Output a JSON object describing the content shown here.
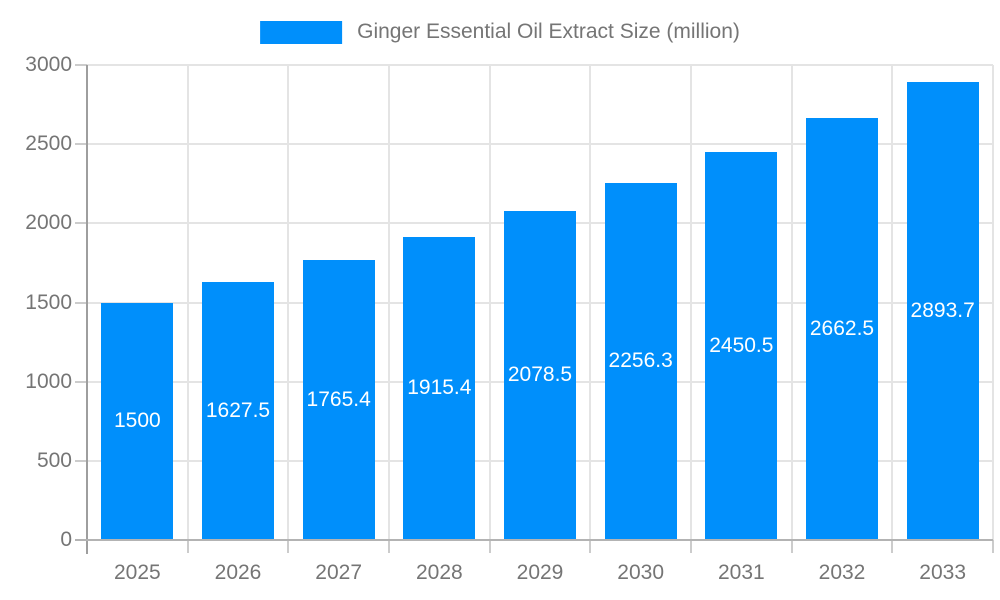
{
  "chart_data": {
    "type": "bar",
    "title": "Ginger Essential Oil Extract Size (million)",
    "categories": [
      "2025",
      "2026",
      "2027",
      "2028",
      "2029",
      "2030",
      "2031",
      "2032",
      "2033"
    ],
    "values": [
      1500,
      1627.5,
      1765.4,
      1915.4,
      2078.5,
      2256.3,
      2450.5,
      2662.5,
      2893.7
    ],
    "value_labels": [
      "1500",
      "1627.5",
      "1765.4",
      "1915.4",
      "2078.5",
      "2256.3",
      "2450.5",
      "2662.5",
      "2893.7"
    ],
    "ylabel": "",
    "xlabel": "",
    "ylim": [
      0,
      3000
    ],
    "ytick_step": 500,
    "ytick_labels": [
      "0",
      "500",
      "1000",
      "1500",
      "2000",
      "2500",
      "3000"
    ],
    "grid": true,
    "legend_position": "top",
    "legend_label": "Ginger Essential Oil Extract Size (million)",
    "colors": {
      "bar": "#008ffb",
      "value_label": "#ffffff",
      "axis_text": "#757575",
      "legend_text": "#757575",
      "gridline": "#e4e4e4",
      "y_axis_line": "#9e9e9e",
      "x_axis_line": "#b3b3b3",
      "tick": "#cccccc",
      "background": "#ffffff"
    }
  }
}
